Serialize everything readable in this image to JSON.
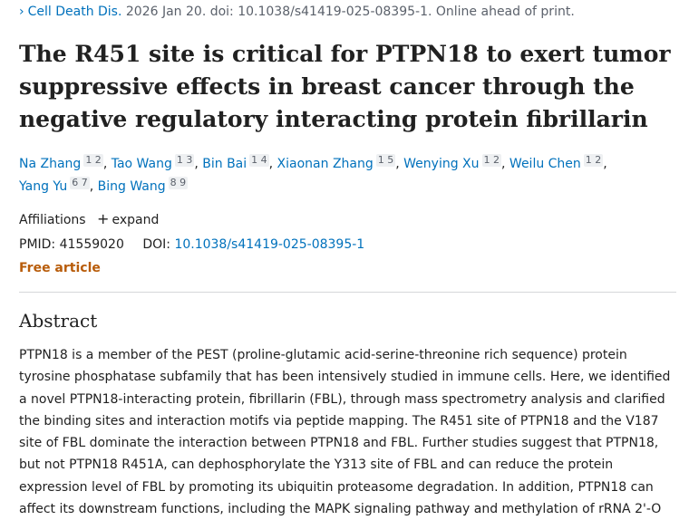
{
  "citation": {
    "journal": "Cell Death Dis.",
    "details": "2026 Jan 20. doi: 10.1038/s41419-025-08395-1. Online ahead of print."
  },
  "title": "The R451 site is critical for PTPN18 to exert tumor suppressive effects in breast cancer through the negative regulatory interacting protein fibrillarin",
  "authors": [
    {
      "name": "Na Zhang",
      "affs": "1 2"
    },
    {
      "name": "Tao Wang",
      "affs": "1 3"
    },
    {
      "name": "Bin Bai",
      "affs": "1 4"
    },
    {
      "name": "Xiaonan Zhang",
      "affs": "1 5"
    },
    {
      "name": "Wenying Xu",
      "affs": "1 2"
    },
    {
      "name": "Weilu Chen",
      "affs": "1 2"
    },
    {
      "name": "Yang Yu",
      "affs": "6 7"
    },
    {
      "name": "Bing Wang",
      "affs": "8 9"
    }
  ],
  "affiliations": {
    "label": "Affiliations",
    "toggle": "expand",
    "toggle_icon": "plus-icon"
  },
  "ids": {
    "pmid_label": "PMID:",
    "pmid": "41559020",
    "doi_label": "DOI:",
    "doi": "10.1038/s41419-025-08395-1"
  },
  "free_article": "Free article",
  "abstract": {
    "heading": "Abstract",
    "text": "PTPN18 is a member of the PEST (proline-glutamic acid-serine-threonine rich sequence) protein tyrosine phosphatase subfamily that has been intensively studied in immune cells. Here, we identified a novel PTPN18-interacting protein, fibrillarin (FBL), through mass spectrometry analysis and clarified the binding sites and interaction motifs via peptide mapping. The R451 site of PTPN18 and the V187 site of FBL dominate the interaction between PTPN18 and FBL. Further studies suggest that PTPN18, but not PTPN18 R451A, can dephosphorylate the Y313 site of FBL and can reduce the protein expression level of FBL by promoting its ubiquitin proteasome degradation. In addition, PTPN18 can affect its downstream functions, including the MAPK signaling pathway and methylation of rRNA 2'-O"
  },
  "colors": {
    "link": "#0071bc",
    "free_article": "#b85c0a",
    "text": "#212121",
    "muted": "#5b616b"
  }
}
